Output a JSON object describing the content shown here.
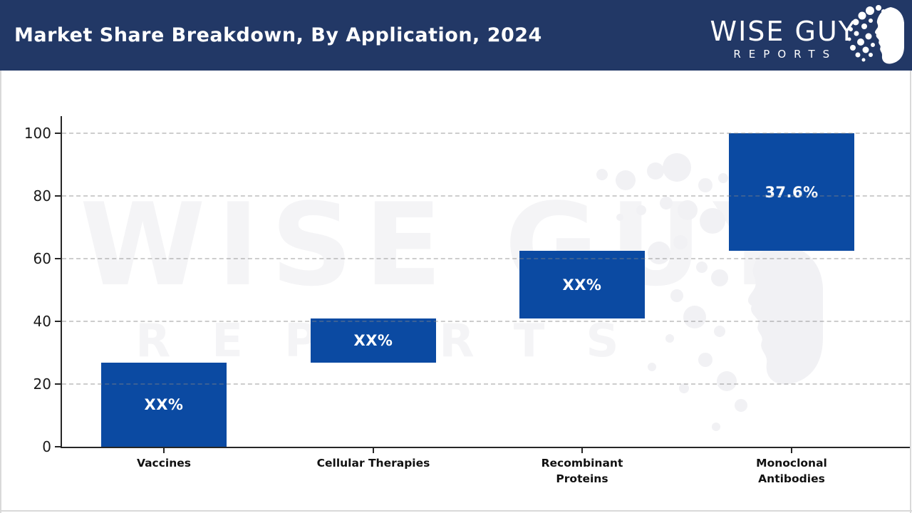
{
  "header": {
    "title": "Market Share Breakdown, By Application, 2024",
    "logo": {
      "line1": "WISE GUY",
      "line2": "REPORTS"
    }
  },
  "watermark": {
    "line1": "WISE GUY",
    "line2": "REPORTS"
  },
  "chart_data": {
    "type": "bar",
    "subtype": "waterfall",
    "title": "Market Share Breakdown, By Application, 2024",
    "categories": [
      "Vaccines",
      "Cellular Therapies",
      "Recombinant\nProteins",
      "Monoclonal\nAntibodies"
    ],
    "segments": [
      {
        "category": "Vaccines",
        "start": 0,
        "end": 26.9,
        "label": "XX%"
      },
      {
        "category": "Cellular Therapies",
        "start": 26.9,
        "end": 40.9,
        "label": "XX%"
      },
      {
        "category": "Recombinant Proteins",
        "start": 40.9,
        "end": 62.4,
        "label": "XX%"
      },
      {
        "category": "Monoclonal Antibodies",
        "start": 62.4,
        "end": 100,
        "label": "37.6%"
      }
    ],
    "ylim": [
      0,
      100
    ],
    "yticks": [
      0,
      20,
      40,
      60,
      80,
      100
    ],
    "xlabel": "",
    "ylabel": "",
    "grid": "horizontal-dashed",
    "legend": "none",
    "bar_color": "#0b4aa2",
    "bar_label_color": "#ffffff"
  },
  "colors": {
    "header_bg": "#223866",
    "bar": "#0b4aa2",
    "grid": "#c8c8c8",
    "axis": "#262626",
    "card_border": "#d9d9d9",
    "watermark": "#f4f4f6"
  }
}
